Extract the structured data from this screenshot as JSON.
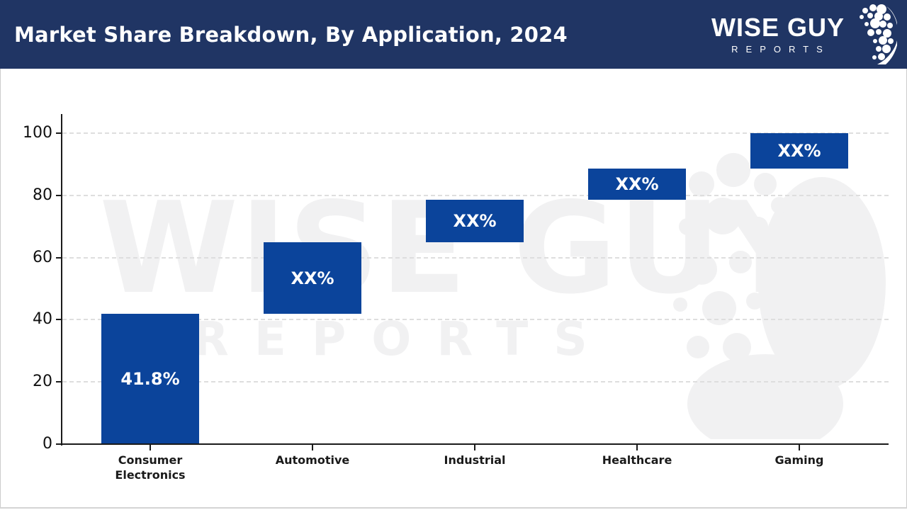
{
  "header": {
    "title": "Market Share Breakdown, By Application, 2024",
    "bg_color": "#203564",
    "logo": {
      "name": "WISE GUY",
      "sub": "REPORTS"
    }
  },
  "watermark": {
    "name": "WISE GUY",
    "sub": "REPORTS"
  },
  "chart_data": {
    "type": "bar",
    "variant": "waterfall",
    "title": "Market Share Breakdown, By Application, 2024",
    "categories": [
      "Consumer Electronics",
      "Automotive",
      "Industrial",
      "Healthcare",
      "Gaming"
    ],
    "segments": [
      {
        "category": "Consumer Electronics",
        "start": 0,
        "end": 41.8,
        "label": "41.8%"
      },
      {
        "category": "Automotive",
        "start": 41.8,
        "end": 65.0,
        "label": "XX%"
      },
      {
        "category": "Industrial",
        "start": 65.0,
        "end": 78.5,
        "label": "XX%"
      },
      {
        "category": "Healthcare",
        "start": 78.5,
        "end": 88.5,
        "label": "XX%"
      },
      {
        "category": "Gaming",
        "start": 88.5,
        "end": 100.0,
        "label": "XX%"
      }
    ],
    "xlabel": "",
    "ylabel": "",
    "ylim": [
      0,
      106
    ],
    "yticks": [
      0,
      20,
      40,
      60,
      80,
      100
    ],
    "grid": "horizontal-dashed",
    "legend": "none",
    "bar_color": "#0B449B",
    "bar_label_color": "#FFFFFF",
    "watermark_color": "#F1F1F2"
  }
}
